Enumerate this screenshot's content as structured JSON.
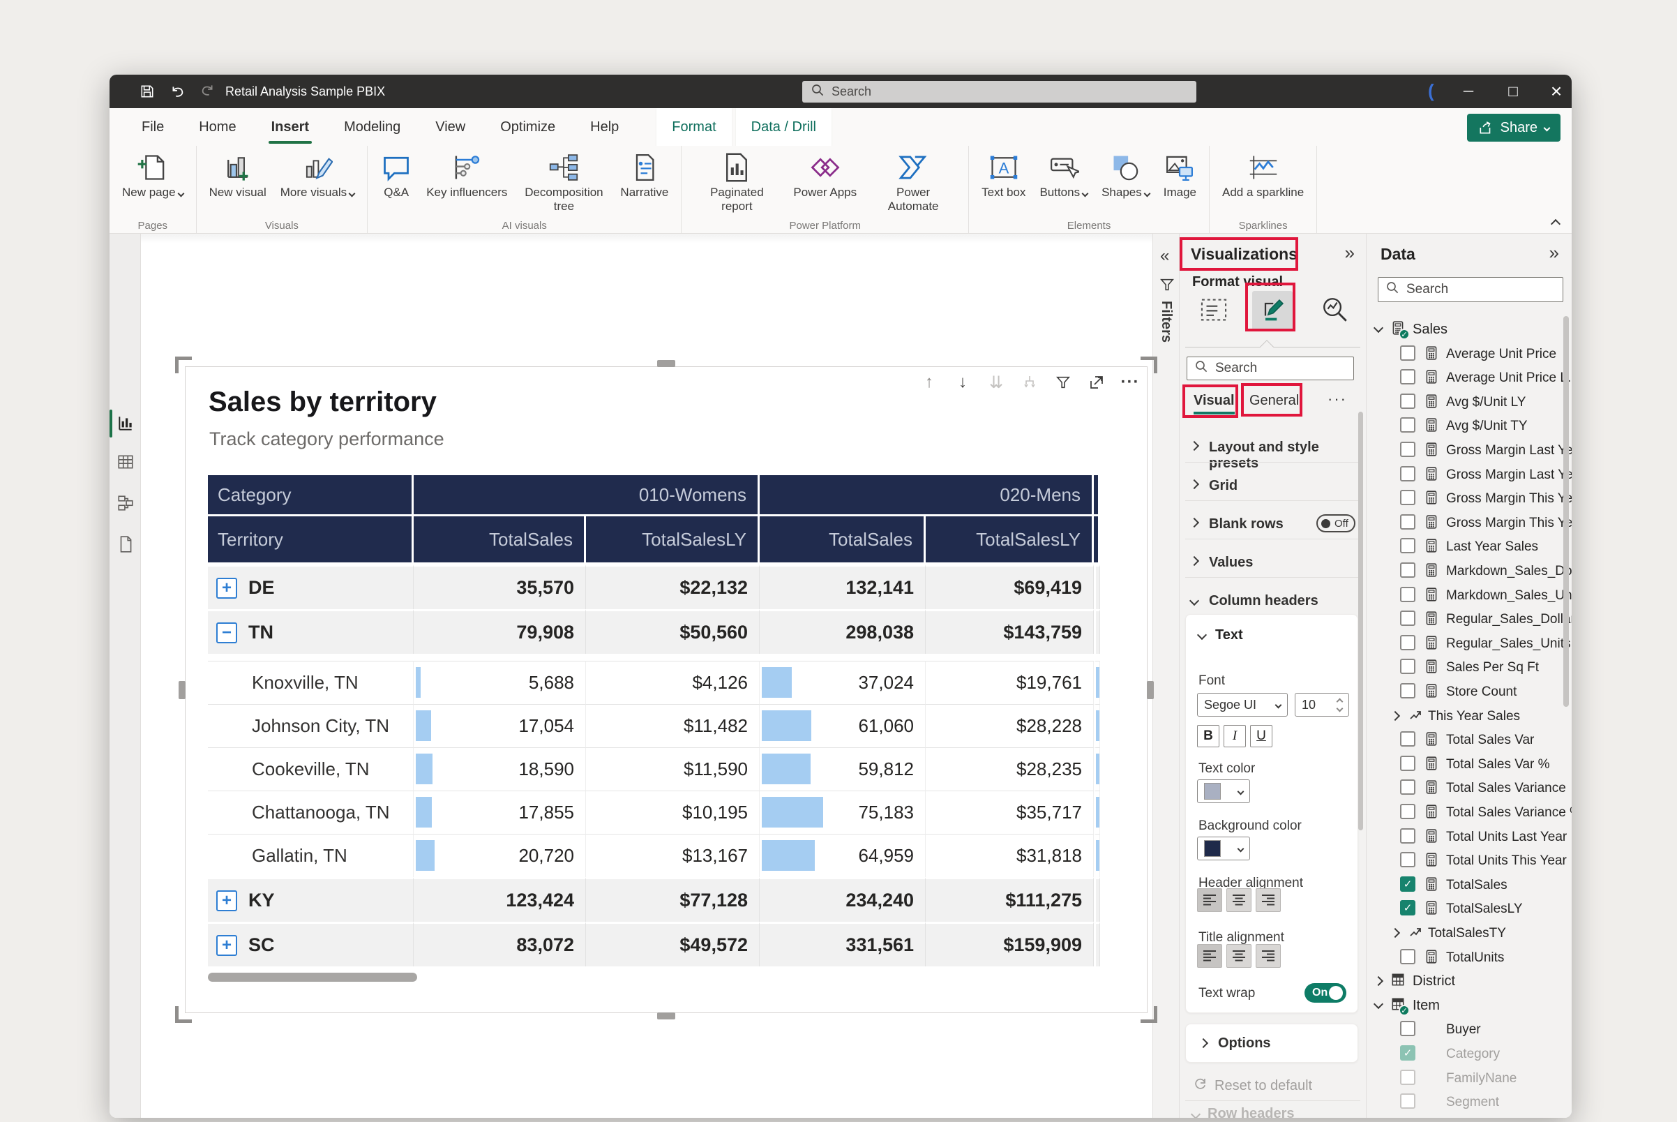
{
  "titlebar": {
    "title": "Retail Analysis Sample PBIX",
    "search_placeholder": "Search"
  },
  "menubar": {
    "tabs": [
      "File",
      "Home",
      "Insert",
      "Modeling",
      "View",
      "Optimize",
      "Help"
    ],
    "active_tab": "Insert",
    "contextual_tabs": [
      "Format",
      "Data / Drill"
    ],
    "share_label": "Share"
  },
  "ribbon": {
    "groups": [
      {
        "label": "Pages",
        "items": [
          {
            "label": "New page",
            "icon": "new-page-icon",
            "dropdown": true
          }
        ]
      },
      {
        "label": "Visuals",
        "items": [
          {
            "label": "New visual",
            "icon": "new-visual-icon"
          },
          {
            "label": "More visuals",
            "icon": "more-visuals-icon",
            "dropdown": true
          }
        ]
      },
      {
        "label": "AI visuals",
        "items": [
          {
            "label": "Q&A",
            "icon": "qa-icon"
          },
          {
            "label": "Key influencers",
            "icon": "key-influencers-icon"
          },
          {
            "label": "Decomposition tree",
            "icon": "decomposition-tree-icon"
          },
          {
            "label": "Narrative",
            "icon": "narrative-icon"
          }
        ]
      },
      {
        "label": "Power Platform",
        "items": [
          {
            "label": "Paginated report",
            "icon": "paginated-report-icon"
          },
          {
            "label": "Power Apps",
            "icon": "power-apps-icon"
          },
          {
            "label": "Power Automate",
            "icon": "power-automate-icon"
          }
        ]
      },
      {
        "label": "Elements",
        "items": [
          {
            "label": "Text box",
            "icon": "text-box-icon"
          },
          {
            "label": "Buttons",
            "icon": "buttons-icon",
            "dropdown": true
          },
          {
            "label": "Shapes",
            "icon": "shapes-icon",
            "dropdown": true
          },
          {
            "label": "Image",
            "icon": "image-icon"
          }
        ]
      },
      {
        "label": "Sparklines",
        "items": [
          {
            "label": "Add a sparkline",
            "icon": "sparkline-icon"
          }
        ]
      }
    ]
  },
  "sidebar": {
    "items": [
      "report-view",
      "table-view",
      "model-view",
      "dax-query-view"
    ],
    "active": "report-view"
  },
  "visual": {
    "title": "Sales by territory",
    "subtitle": "Track category performance",
    "header_icons": [
      "drill-up",
      "drill-down",
      "drill-down-level",
      "expand-all",
      "filter",
      "focus-mode",
      "more-options"
    ],
    "table": {
      "group_headers": [
        {
          "label": "Category",
          "span": 1
        },
        {
          "label": "010-Womens",
          "span": 2
        },
        {
          "label": "020-Mens",
          "span": 2
        }
      ],
      "columns": [
        "Territory",
        "TotalSales",
        "TotalSalesLY",
        "TotalSales",
        "TotalSalesLY"
      ],
      "rows": [
        {
          "label": "DE",
          "type": "group",
          "expander": "plus",
          "values": [
            "35,570",
            "$22,132",
            "132,141",
            "$69,419"
          ]
        },
        {
          "label": "TN",
          "type": "group",
          "expander": "minus",
          "values": [
            "79,908",
            "$50,560",
            "298,038",
            "$143,759"
          ]
        },
        {
          "label": "Knoxville, TN",
          "type": "leaf",
          "values": [
            "5,688",
            "$4,126",
            "37,024",
            "$19,761"
          ],
          "numeric": [
            5688,
            4126,
            37024,
            19761
          ]
        },
        {
          "label": "Johnson City, TN",
          "type": "leaf",
          "values": [
            "17,054",
            "$11,482",
            "61,060",
            "$28,228"
          ],
          "numeric": [
            17054,
            11482,
            61060,
            28228
          ]
        },
        {
          "label": "Cookeville, TN",
          "type": "leaf",
          "values": [
            "18,590",
            "$11,590",
            "59,812",
            "$28,235"
          ],
          "numeric": [
            18590,
            11590,
            59812,
            28235
          ]
        },
        {
          "label": "Chattanooga, TN",
          "type": "leaf",
          "values": [
            "17,855",
            "$10,195",
            "75,183",
            "$35,717"
          ],
          "numeric": [
            17855,
            10195,
            75183,
            35717
          ]
        },
        {
          "label": "Gallatin, TN",
          "type": "leaf",
          "values": [
            "20,720",
            "$13,167",
            "64,959",
            "$31,818"
          ],
          "numeric": [
            20720,
            13167,
            64959,
            31818
          ]
        },
        {
          "label": "KY",
          "type": "group",
          "expander": "plus",
          "values": [
            "123,424",
            "$77,128",
            "234,240",
            "$111,275"
          ]
        },
        {
          "label": "SC",
          "type": "group",
          "expander": "plus",
          "values": [
            "83,072",
            "$49,572",
            "331,561",
            "$159,909"
          ]
        }
      ]
    }
  },
  "filters_pane": {
    "label": "Filters"
  },
  "viz_pane": {
    "title": "Visualizations",
    "subtitle": "Format visual",
    "mode_icons": [
      "build-visual",
      "format-visual",
      "analytics"
    ],
    "active_mode": "format-visual",
    "search_placeholder": "Search",
    "tabs": [
      {
        "label": "Visual",
        "active": true
      },
      {
        "label": "General",
        "active": false
      }
    ],
    "more_label": "···",
    "sections": [
      {
        "label": "Layout and style presets"
      },
      {
        "label": "Grid"
      },
      {
        "label": "Blank rows",
        "toggle": "Off"
      },
      {
        "label": "Values"
      },
      {
        "label": "Column headers",
        "expanded": true
      }
    ],
    "text_card": {
      "title": "Text",
      "font_label": "Font",
      "font_name": "Segoe UI",
      "font_size": "10",
      "bold_label": "B",
      "italic_label": "I",
      "underline_label": "U",
      "text_color_label": "Text color",
      "text_color": "#a9b0c2",
      "background_color_label": "Background color",
      "background_color": "#1f2a4a",
      "header_alignment_label": "Header alignment",
      "title_alignment_label": "Title alignment",
      "text_wrap_label": "Text wrap",
      "text_wrap_state": "On"
    },
    "options_label": "Options",
    "reset_label": "Reset to default",
    "next_section_label": "Row headers"
  },
  "data_pane": {
    "title": "Data",
    "search_placeholder": "Search",
    "fields": [
      {
        "label": "Sales",
        "kind": "root",
        "badge": true
      },
      {
        "label": "Average Unit Price",
        "kind": "measure"
      },
      {
        "label": "Average Unit Price L...",
        "kind": "measure"
      },
      {
        "label": "Avg $/Unit LY",
        "kind": "measure"
      },
      {
        "label": "Avg $/Unit TY",
        "kind": "measure"
      },
      {
        "label": "Gross Margin Last Year",
        "kind": "measure"
      },
      {
        "label": "Gross Margin Last Ye...",
        "kind": "measure"
      },
      {
        "label": "Gross Margin This Year",
        "kind": "measure"
      },
      {
        "label": "Gross Margin This Ye...",
        "kind": "measure"
      },
      {
        "label": "Last Year Sales",
        "kind": "measure"
      },
      {
        "label": "Markdown_Sales_Dol...",
        "kind": "measure"
      },
      {
        "label": "Markdown_Sales_Units",
        "kind": "measure"
      },
      {
        "label": "Regular_Sales_Dollars",
        "kind": "measure"
      },
      {
        "label": "Regular_Sales_Units",
        "kind": "measure"
      },
      {
        "label": "Sales Per Sq Ft",
        "kind": "measure"
      },
      {
        "label": "Store Count",
        "kind": "measure"
      },
      {
        "label": "This Year Sales",
        "kind": "measure-group"
      },
      {
        "label": "Total Sales Var",
        "kind": "measure"
      },
      {
        "label": "Total Sales Var %",
        "kind": "measure"
      },
      {
        "label": "Total Sales Variance",
        "kind": "measure"
      },
      {
        "label": "Total Sales Variance %",
        "kind": "measure"
      },
      {
        "label": "Total Units Last Year",
        "kind": "measure"
      },
      {
        "label": "Total Units This Year",
        "kind": "measure"
      },
      {
        "label": "TotalSales",
        "kind": "measure",
        "checked": true
      },
      {
        "label": "TotalSalesLY",
        "kind": "measure",
        "checked": true
      },
      {
        "label": "TotalSalesTY",
        "kind": "measure-group"
      },
      {
        "label": "TotalUnits",
        "kind": "measure"
      },
      {
        "label": "District",
        "kind": "table"
      },
      {
        "label": "Item",
        "kind": "table-open",
        "badge": true
      },
      {
        "label": "Buyer",
        "kind": "column"
      },
      {
        "label": "Category",
        "kind": "column",
        "checked": true,
        "muted": true
      },
      {
        "label": "FamilyNane",
        "kind": "column",
        "muted": true
      },
      {
        "label": "Segment",
        "kind": "column",
        "muted": true
      }
    ]
  },
  "colors": {
    "accent_teal": "#117865",
    "insert_underline_green": "#217346",
    "annotation_red": "#e0163c",
    "table_header_navy": "#202b4d",
    "data_bar_blue": "#a5cdf2",
    "titlebar_dark": "#2f2e2d"
  }
}
